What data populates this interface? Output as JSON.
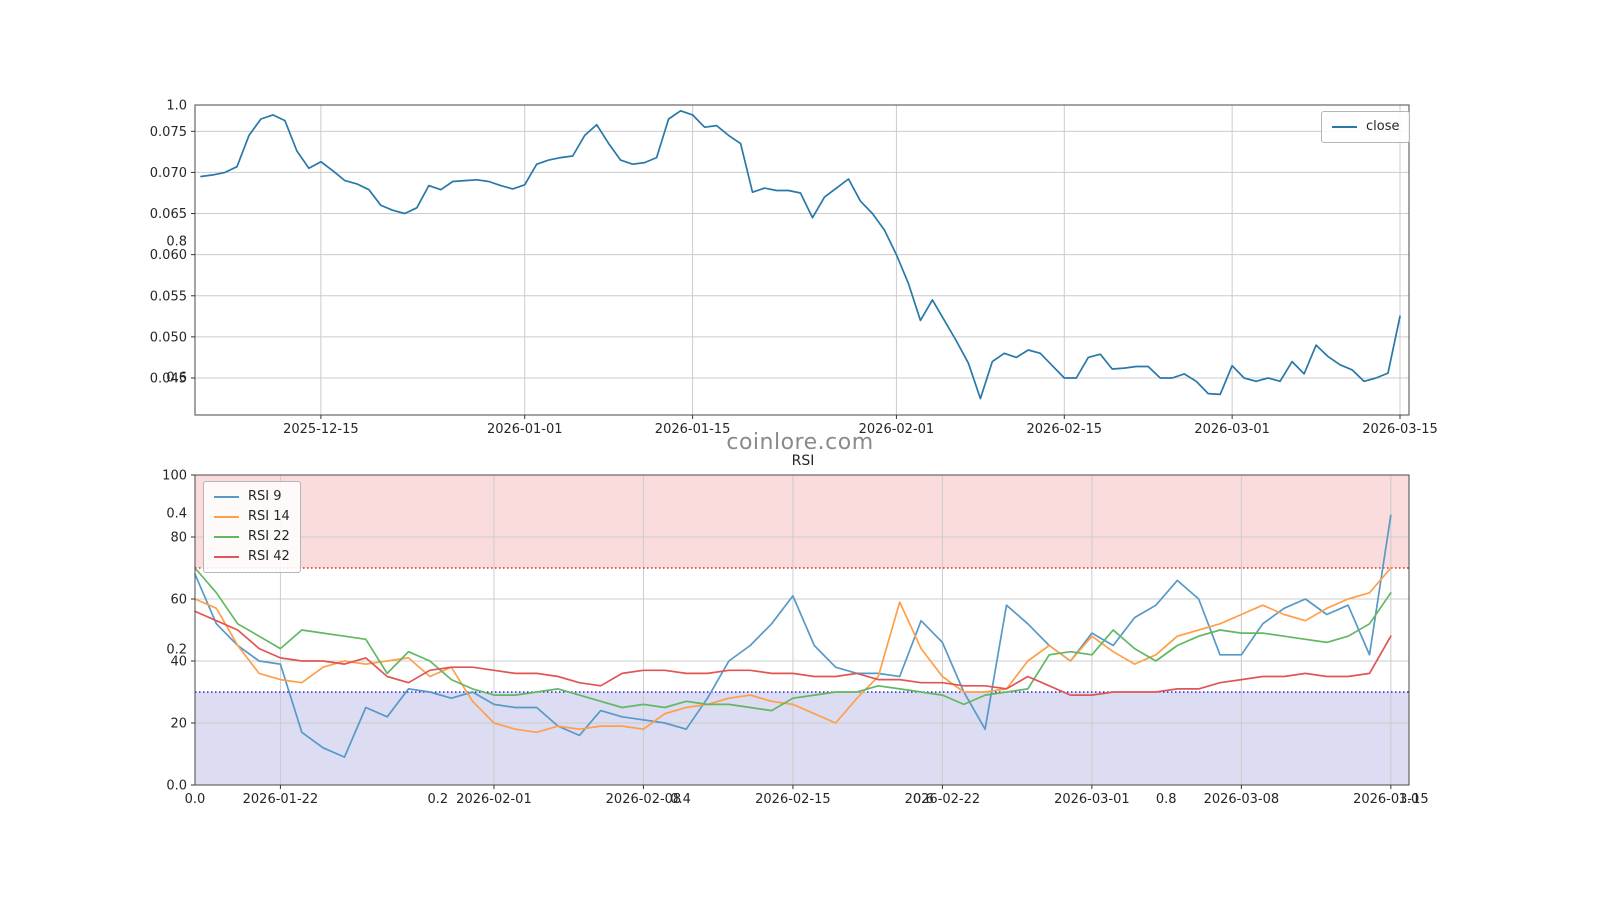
{
  "watermark": "coinlore.com",
  "stray_axis": {
    "labels": [
      "0.0",
      "0.2",
      "0.4",
      "0.6",
      "0.8",
      "1.0"
    ]
  },
  "chart_data": [
    {
      "type": "line",
      "name": "price",
      "legend_position": "top-right",
      "xlim": [
        -0.5,
        100.75
      ],
      "ylim": [
        0.0405,
        0.0782
      ],
      "grid": true,
      "xticks": [
        {
          "x": 10,
          "label": "2025-12-15"
        },
        {
          "x": 27,
          "label": "2026-01-01"
        },
        {
          "x": 41,
          "label": "2026-01-15"
        },
        {
          "x": 58,
          "label": "2026-02-01"
        },
        {
          "x": 72,
          "label": "2026-02-15"
        },
        {
          "x": 86,
          "label": "2026-03-01"
        },
        {
          "x": 100,
          "label": "2026-03-15"
        }
      ],
      "yticks": [
        {
          "y": 0.045,
          "label": "0.045"
        },
        {
          "y": 0.05,
          "label": "0.050"
        },
        {
          "y": 0.055,
          "label": "0.055"
        },
        {
          "y": 0.06,
          "label": "0.060"
        },
        {
          "y": 0.065,
          "label": "0.065"
        },
        {
          "y": 0.07,
          "label": "0.070"
        },
        {
          "y": 0.075,
          "label": "0.075"
        }
      ],
      "series": [
        {
          "name": "close",
          "color": "#2878a8",
          "values": [
            0.0695,
            0.0697,
            0.07,
            0.0707,
            0.0745,
            0.0765,
            0.077,
            0.0763,
            0.0726,
            0.0705,
            0.0713,
            0.0702,
            0.069,
            0.0686,
            0.0679,
            0.066,
            0.0654,
            0.065,
            0.0657,
            0.0684,
            0.0679,
            0.0689,
            0.069,
            0.0691,
            0.0689,
            0.0684,
            0.068,
            0.0685,
            0.071,
            0.0715,
            0.0718,
            0.072,
            0.0745,
            0.0758,
            0.0735,
            0.0715,
            0.071,
            0.0712,
            0.0718,
            0.0765,
            0.0775,
            0.077,
            0.0755,
            0.0757,
            0.0745,
            0.0735,
            0.0676,
            0.0681,
            0.0678,
            0.0678,
            0.0675,
            0.0645,
            0.067,
            0.0681,
            0.0692,
            0.0665,
            0.065,
            0.063,
            0.06,
            0.0565,
            0.052,
            0.0545,
            0.052,
            0.0495,
            0.0468,
            0.0425,
            0.047,
            0.048,
            0.0475,
            0.0484,
            0.048,
            0.0465,
            0.045,
            0.045,
            0.0475,
            0.0479,
            0.0461,
            0.0462,
            0.0464,
            0.0464,
            0.045,
            0.045,
            0.0455,
            0.0446,
            0.0431,
            0.043,
            0.0465,
            0.045,
            0.0446,
            0.045,
            0.0446,
            0.047,
            0.0455,
            0.049,
            0.0476,
            0.0466,
            0.046,
            0.0446,
            0.045,
            0.0456,
            0.0525
          ]
        }
      ]
    },
    {
      "type": "line",
      "name": "rsi",
      "title": "RSI",
      "legend_position": "top-left",
      "xlim": [
        0,
        56.85
      ],
      "ylim": [
        0,
        100
      ],
      "grid": true,
      "regions": [
        {
          "from": 70,
          "to": 100,
          "color": "#fbdcdc",
          "meaning": "overbought"
        },
        {
          "from": 0,
          "to": 30,
          "color": "#dcdcf2",
          "meaning": "oversold"
        }
      ],
      "hlines": [
        {
          "y": 70,
          "color": "#cc0000",
          "style": "dotted"
        },
        {
          "y": 30,
          "color": "#0000cc",
          "style": "dotted"
        }
      ],
      "xticks": [
        {
          "x": 4,
          "label": "2026-01-22"
        },
        {
          "x": 14,
          "label": "2026-02-01"
        },
        {
          "x": 21,
          "label": "2026-02-08"
        },
        {
          "x": 28,
          "label": "2026-02-15"
        },
        {
          "x": 35,
          "label": "2026-02-22"
        },
        {
          "x": 42,
          "label": "2026-03-01"
        },
        {
          "x": 49,
          "label": "2026-03-08"
        },
        {
          "x": 56,
          "label": "2026-03-15"
        }
      ],
      "yticks": [
        {
          "y": 0,
          "label": ""
        },
        {
          "y": 20,
          "label": "20"
        },
        {
          "y": 40,
          "label": "40"
        },
        {
          "y": 60,
          "label": "60"
        },
        {
          "y": 80,
          "label": "80"
        },
        {
          "y": 100,
          "label": "100"
        }
      ],
      "series": [
        {
          "name": "RSI 9",
          "color": "#5799c7",
          "values": [
            68,
            52,
            45,
            40,
            39,
            17,
            12,
            9,
            25,
            22,
            31,
            30,
            28,
            30,
            26,
            25,
            25,
            19,
            16,
            24,
            22,
            21,
            20,
            18,
            28,
            40,
            45,
            52,
            61,
            45,
            38,
            36,
            36,
            35,
            53,
            46,
            30,
            18,
            58,
            52,
            45,
            40,
            49,
            45,
            54,
            58,
            66,
            60,
            42,
            42,
            52,
            57,
            60,
            55,
            58,
            42,
            87
          ]
        },
        {
          "name": "RSI 14",
          "color": "#ff9f4a",
          "values": [
            60,
            57,
            45,
            36,
            34,
            33,
            38,
            40,
            39,
            40,
            41,
            35,
            38,
            27,
            20,
            18,
            17,
            19,
            18,
            19,
            19,
            18,
            23,
            25,
            26,
            28,
            29,
            27,
            26,
            23,
            20,
            28,
            35,
            59,
            44,
            35,
            30,
            30,
            31,
            40,
            45,
            40,
            48,
            43,
            39,
            42,
            48,
            50,
            52,
            55,
            58,
            55,
            53,
            57,
            60,
            62,
            70
          ]
        },
        {
          "name": "RSI 22",
          "color": "#61b861",
          "values": [
            70,
            62,
            52,
            48,
            44,
            50,
            49,
            48,
            47,
            36,
            43,
            40,
            34,
            31,
            29,
            29,
            30,
            31,
            29,
            27,
            25,
            26,
            25,
            27,
            26,
            26,
            25,
            24,
            28,
            29,
            30,
            30,
            32,
            31,
            30,
            29,
            26,
            29,
            30,
            31,
            42,
            43,
            42,
            50,
            44,
            40,
            45,
            48,
            50,
            49,
            49,
            48,
            47,
            46,
            48,
            52,
            62
          ]
        },
        {
          "name": "RSI 42",
          "color": "#e05656",
          "values": [
            56,
            53,
            50,
            44,
            41,
            40,
            40,
            39,
            41,
            35,
            33,
            37,
            38,
            38,
            37,
            36,
            36,
            35,
            33,
            32,
            36,
            37,
            37,
            36,
            36,
            37,
            37,
            36,
            36,
            35,
            35,
            36,
            34,
            34,
            33,
            33,
            32,
            32,
            31,
            35,
            32,
            29,
            29,
            30,
            30,
            30,
            31,
            31,
            33,
            34,
            35,
            35,
            36,
            35,
            35,
            36,
            48
          ]
        }
      ]
    }
  ]
}
